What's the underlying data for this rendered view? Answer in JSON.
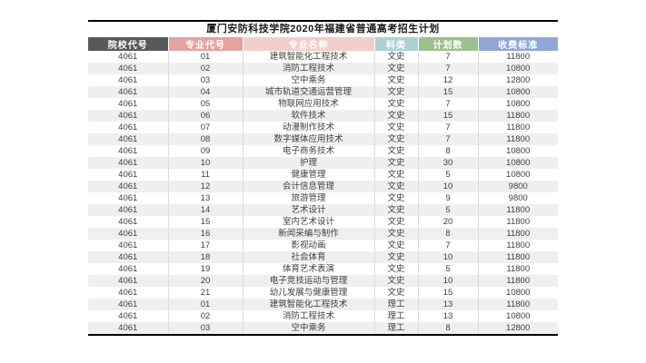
{
  "page": {
    "title": "厦门安防科技学院2020年福建省普通高考招生计划"
  },
  "table": {
    "columns": [
      {
        "key": "college_code",
        "label": "院校代号",
        "header_color": "#58595B"
      },
      {
        "key": "major_code",
        "label": "专业代号",
        "header_color": "#E4A2A1"
      },
      {
        "key": "major_name",
        "label": "专业名称",
        "header_color": "#EFCFC9"
      },
      {
        "key": "subject_category",
        "label": "科类",
        "header_color": "#ABD2D1"
      },
      {
        "key": "plan_count",
        "label": "计划数",
        "header_color": "#9BC18E"
      },
      {
        "key": "fee_standard",
        "label": "收费标准",
        "header_color": "#8FA6D6"
      }
    ],
    "stripe_colors": {
      "odd": "#FFFFFF",
      "even": "#EFEFEF"
    },
    "rows": [
      [
        "4061",
        "01",
        "建筑智能化工程技术",
        "文史",
        "7",
        "11800"
      ],
      [
        "4061",
        "02",
        "消防工程技术",
        "文史",
        "7",
        "10800"
      ],
      [
        "4061",
        "03",
        "空中乘务",
        "文史",
        "12",
        "12800"
      ],
      [
        "4061",
        "04",
        "城市轨道交通运营管理",
        "文史",
        "15",
        "10800"
      ],
      [
        "4061",
        "05",
        "物联网应用技术",
        "文史",
        "7",
        "10800"
      ],
      [
        "4061",
        "06",
        "软件技术",
        "文史",
        "15",
        "11800"
      ],
      [
        "4061",
        "07",
        "动漫制作技术",
        "文史",
        "7",
        "11800"
      ],
      [
        "4061",
        "08",
        "数字媒体应用技术",
        "文史",
        "7",
        "11800"
      ],
      [
        "4061",
        "09",
        "电子商务技术",
        "文史",
        "8",
        "10800"
      ],
      [
        "4061",
        "10",
        "护理",
        "文史",
        "30",
        "10800"
      ],
      [
        "4061",
        "11",
        "健康管理",
        "文史",
        "5",
        "10800"
      ],
      [
        "4061",
        "12",
        "会计信息管理",
        "文史",
        "10",
        "9800"
      ],
      [
        "4061",
        "13",
        "旅游管理",
        "文史",
        "9",
        "9800"
      ],
      [
        "4061",
        "14",
        "艺术设计",
        "文史",
        "5",
        "11800"
      ],
      [
        "4061",
        "15",
        "室内艺术设计",
        "文史",
        "20",
        "11800"
      ],
      [
        "4061",
        "16",
        "新闻采编与制作",
        "文史",
        "8",
        "11800"
      ],
      [
        "4061",
        "17",
        "影视动画",
        "文史",
        "7",
        "11800"
      ],
      [
        "4061",
        "18",
        "社会体育",
        "文史",
        "10",
        "11800"
      ],
      [
        "4061",
        "19",
        "体育艺术表演",
        "文史",
        "5",
        "11800"
      ],
      [
        "4061",
        "20",
        "电子竞技运动与管理",
        "文史",
        "10",
        "11800"
      ],
      [
        "4061",
        "21",
        "幼儿发展与健康管理",
        "文史",
        "15",
        "10800"
      ],
      [
        "4061",
        "01",
        "建筑智能化工程技术",
        "理工",
        "13",
        "11800"
      ],
      [
        "4061",
        "02",
        "消防工程技术",
        "理工",
        "13",
        "10800"
      ],
      [
        "4061",
        "03",
        "空中乘务",
        "理工",
        "8",
        "12800"
      ]
    ]
  }
}
